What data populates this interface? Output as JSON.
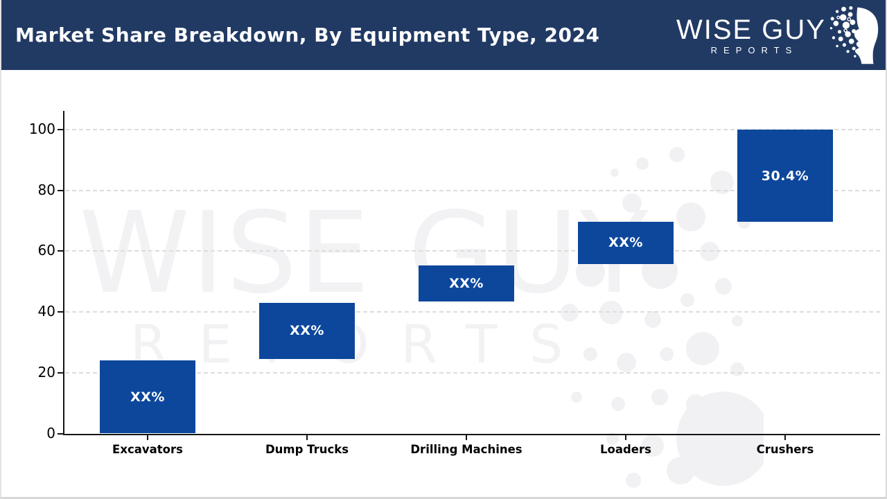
{
  "header": {
    "title": "Market Share Breakdown, By Equipment Type, 2024",
    "logo": {
      "line1": "WISE GUY",
      "line2": "REPORTS"
    }
  },
  "watermark": {
    "line1": "WISE GUY",
    "line2": "REPORTS"
  },
  "colors": {
    "header_bg": "#213a64",
    "bar_fill": "#0c479c",
    "grid": "#dcdcdc",
    "axis": "#141414",
    "bar_label_text": "#ffffff",
    "watermark": "#f2f2f4"
  },
  "chart_data": {
    "type": "bar",
    "variant": "floating-waterfall",
    "title": "Market Share Breakdown, By Equipment Type, 2024",
    "categories": [
      "Excavators",
      "Dump Trucks",
      "Drilling Machines",
      "Loaders",
      "Crushers"
    ],
    "bars": [
      {
        "category": "Excavators",
        "start": 0,
        "end": 24,
        "label": "XX%"
      },
      {
        "category": "Dump Trucks",
        "start": 24.5,
        "end": 43,
        "label": "XX%"
      },
      {
        "category": "Drilling Machines",
        "start": 43.4,
        "end": 55.3,
        "label": "XX%"
      },
      {
        "category": "Loaders",
        "start": 55.8,
        "end": 69.7,
        "label": "XX%"
      },
      {
        "category": "Crushers",
        "start": 69.6,
        "end": 100,
        "label": "30.4%"
      }
    ],
    "ylabel": "",
    "xlabel": "",
    "yticks": [
      0,
      20,
      40,
      60,
      80,
      100
    ],
    "ylim": [
      0,
      106
    ],
    "grid": "dashed-horizontal",
    "legend": "none"
  }
}
